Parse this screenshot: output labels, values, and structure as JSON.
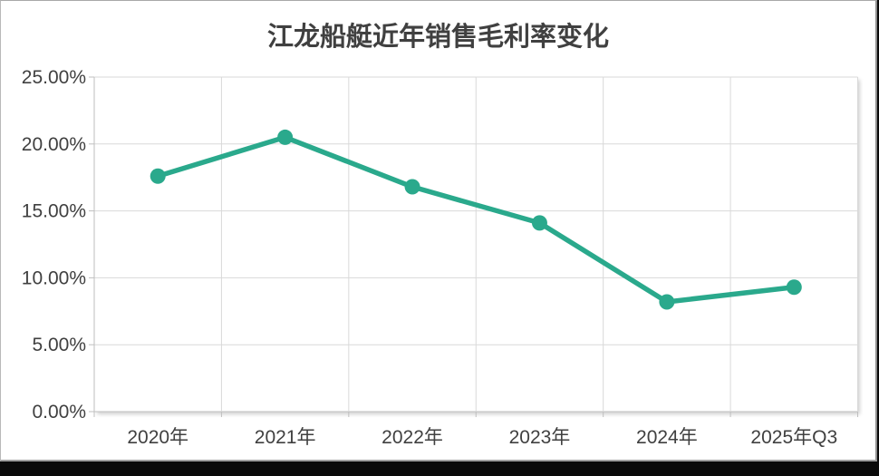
{
  "chart_data": {
    "type": "line",
    "title": "江龙船艇近年销售毛利率变化",
    "categories": [
      "2020年",
      "2021年",
      "2022年",
      "2023年",
      "2024年",
      "2025年Q3"
    ],
    "series": [
      {
        "name": "销售毛利率",
        "values": [
          17.6,
          20.5,
          16.8,
          14.1,
          8.2,
          9.3
        ]
      }
    ],
    "y_tick_labels": [
      "25.00%",
      "20.00%",
      "15.00%",
      "10.00%",
      "5.00%",
      "0.00%"
    ],
    "y_tick_values": [
      25,
      20,
      15,
      10,
      5,
      0
    ],
    "ylim": [
      0,
      25
    ],
    "value_format": "percent",
    "grid": true,
    "legend_position": "none",
    "colors": {
      "line": "#2aa98c",
      "marker": "#2aa98c",
      "gridline": "#d9d9d9",
      "axis_line": "#bfbfbf",
      "tick_text": "#404040",
      "title_text": "#404040",
      "background": "#ffffff"
    }
  }
}
